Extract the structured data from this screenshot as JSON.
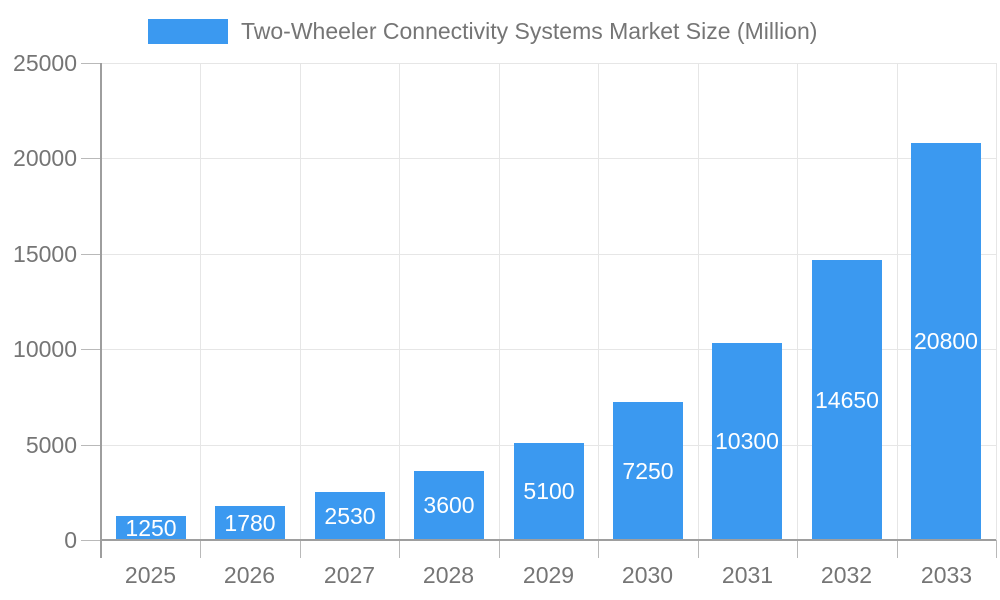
{
  "chart_data": {
    "type": "bar",
    "title": "Two-Wheeler Connectivity Systems Market Size (Million)",
    "categories": [
      "2025",
      "2026",
      "2027",
      "2028",
      "2029",
      "2030",
      "2031",
      "2032",
      "2033"
    ],
    "values": [
      1250,
      1780,
      2530,
      3600,
      5100,
      7250,
      10300,
      14650,
      20800
    ],
    "value_labels": [
      "1250",
      "1780",
      "2530",
      "3600",
      "5100",
      "7250",
      "10300",
      "14650",
      "20800"
    ],
    "xlabel": "",
    "ylabel": "",
    "ylim": [
      0,
      25000
    ],
    "yticks": [
      0,
      5000,
      10000,
      15000,
      20000,
      25000
    ],
    "ytick_labels": [
      "0",
      "5000",
      "10000",
      "15000",
      "20000",
      "25000"
    ],
    "grid": true,
    "legend_position": "top",
    "colors": {
      "bar": "#3B99F0",
      "value_label": "#FFFFFF",
      "axis_label": "#757575",
      "legend_label": "#757575",
      "axis_line": "#9E9E9E",
      "gridline": "#E6E6E6",
      "tick": "#B9B9B9",
      "background": "#FFFFFF"
    }
  }
}
